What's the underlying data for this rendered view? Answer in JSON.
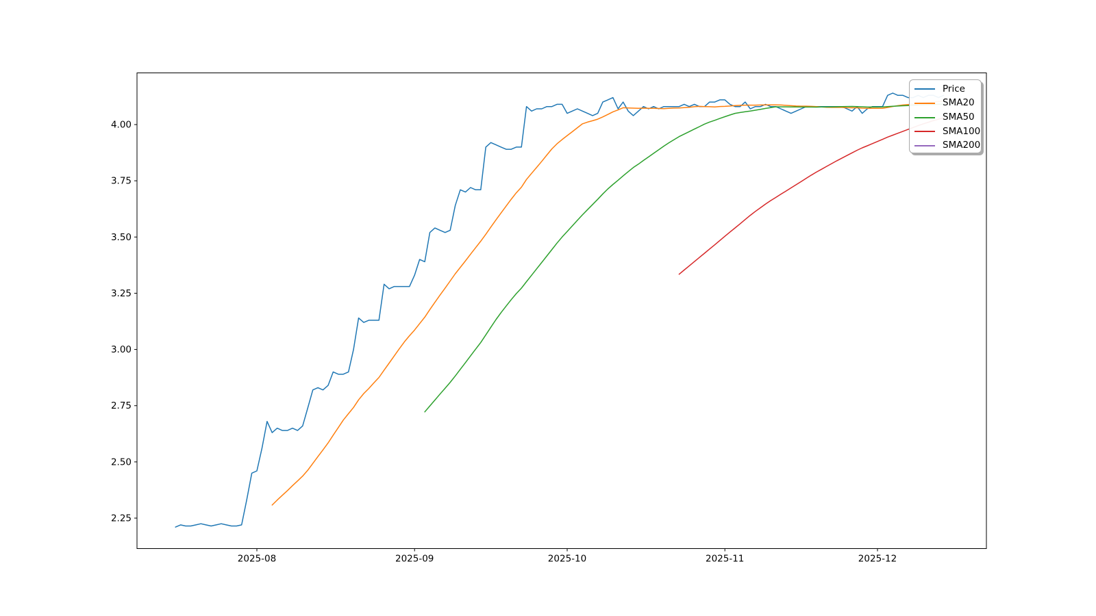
{
  "chart_data": {
    "type": "line",
    "title": "",
    "x_axis": {
      "tick_labels": [
        "2025-08",
        "2025-09",
        "2025-10",
        "2025-11",
        "2025-12"
      ]
    },
    "y_axis": {
      "tick_labels": [
        "2.25",
        "2.50",
        "2.75",
        "3.00",
        "3.25",
        "3.50",
        "3.75",
        "4.00"
      ]
    },
    "xlim": [
      "2025-07-08",
      "2025-12-22"
    ],
    "ylim": [
      2.12,
      4.23
    ],
    "grid": false,
    "legend_position": "upper right",
    "series": [
      {
        "name": "Price",
        "color": "#1f77b4",
        "window": 1
      },
      {
        "name": "SMA20",
        "color": "#ff7f0e",
        "window": 20
      },
      {
        "name": "SMA50",
        "color": "#2ca02c",
        "window": 50
      },
      {
        "name": "SMA100",
        "color": "#d62728",
        "window": 100
      },
      {
        "name": "SMA200",
        "color": "#9467bd",
        "window": 200
      }
    ],
    "price": {
      "start_date": "2025-07-16",
      "frequency": "daily",
      "values": [
        2.21,
        2.22,
        2.215,
        2.215,
        2.22,
        2.225,
        2.22,
        2.215,
        2.22,
        2.225,
        2.22,
        2.215,
        2.215,
        2.22,
        2.33,
        2.45,
        2.46,
        2.56,
        2.68,
        2.63,
        2.65,
        2.64,
        2.64,
        2.65,
        2.64,
        2.66,
        2.74,
        2.82,
        2.83,
        2.82,
        2.84,
        2.9,
        2.89,
        2.89,
        2.9,
        3.0,
        3.14,
        3.12,
        3.13,
        3.13,
        3.13,
        3.29,
        3.27,
        3.28,
        3.28,
        3.28,
        3.28,
        3.33,
        3.4,
        3.39,
        3.52,
        3.54,
        3.53,
        3.52,
        3.53,
        3.64,
        3.71,
        3.7,
        3.72,
        3.71,
        3.71,
        3.9,
        3.92,
        3.91,
        3.9,
        3.89,
        3.89,
        3.9,
        3.9,
        4.08,
        4.06,
        4.07,
        4.07,
        4.08,
        4.08,
        4.09,
        4.09,
        4.05,
        4.06,
        4.07,
        4.06,
        4.05,
        4.04,
        4.05,
        4.1,
        4.11,
        4.12,
        4.07,
        4.1,
        4.06,
        4.04,
        4.06,
        4.08,
        4.07,
        4.08,
        4.07,
        4.08,
        4.08,
        4.08,
        4.08,
        4.09,
        4.08,
        4.09,
        4.08,
        4.08,
        4.1,
        4.1,
        4.11,
        4.11,
        4.09,
        4.08,
        4.08,
        4.1,
        4.07,
        4.08,
        4.08,
        4.09,
        4.08,
        4.08,
        4.07,
        4.06,
        4.05,
        4.06,
        4.07,
        4.08,
        4.08,
        4.08,
        4.08,
        4.08,
        4.08,
        4.08,
        4.08,
        4.07,
        4.06,
        4.08,
        4.05,
        4.07,
        4.08,
        4.08,
        4.08,
        4.13,
        4.14,
        4.13,
        4.13,
        4.12,
        4.12,
        4.13,
        4.12,
        4.13,
        4.13,
        4.12,
        4.13
      ]
    }
  }
}
